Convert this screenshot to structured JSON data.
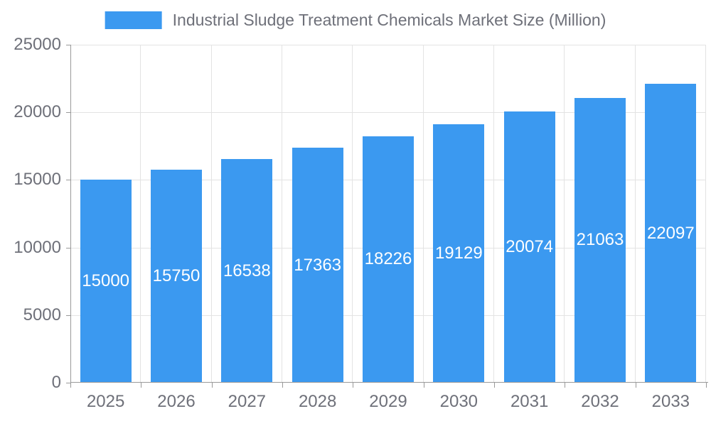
{
  "legend": {
    "label": "Industrial Sludge Treatment Chemicals Market Size (Million)"
  },
  "chart_data": {
    "type": "bar",
    "title": "Industrial Sludge Treatment Chemicals Market Size (Million)",
    "categories": [
      "2025",
      "2026",
      "2027",
      "2028",
      "2029",
      "2030",
      "2031",
      "2032",
      "2033"
    ],
    "values": [
      15000,
      15750,
      16538,
      17363,
      18226,
      19129,
      20074,
      21063,
      22097
    ],
    "series": [
      {
        "name": "Industrial Sludge Treatment Chemicals Market Size (Million)",
        "values": [
          15000,
          15750,
          16538,
          17363,
          18226,
          19129,
          20074,
          21063,
          22097
        ]
      }
    ],
    "xlabel": "",
    "ylabel": "",
    "ylim": [
      0,
      25000
    ],
    "y_ticks": [
      0,
      5000,
      10000,
      15000,
      20000,
      25000
    ],
    "grid": true,
    "legend_position": "top-center",
    "bar_labels_inside": true,
    "colors": {
      "bar": "#3B99F0",
      "bar_label": "#FFFFFF",
      "axis_text": "#6E7079",
      "legend_text": "#6E7079",
      "grid_line": "#E3E3E3",
      "axis_line": "#999999"
    }
  }
}
